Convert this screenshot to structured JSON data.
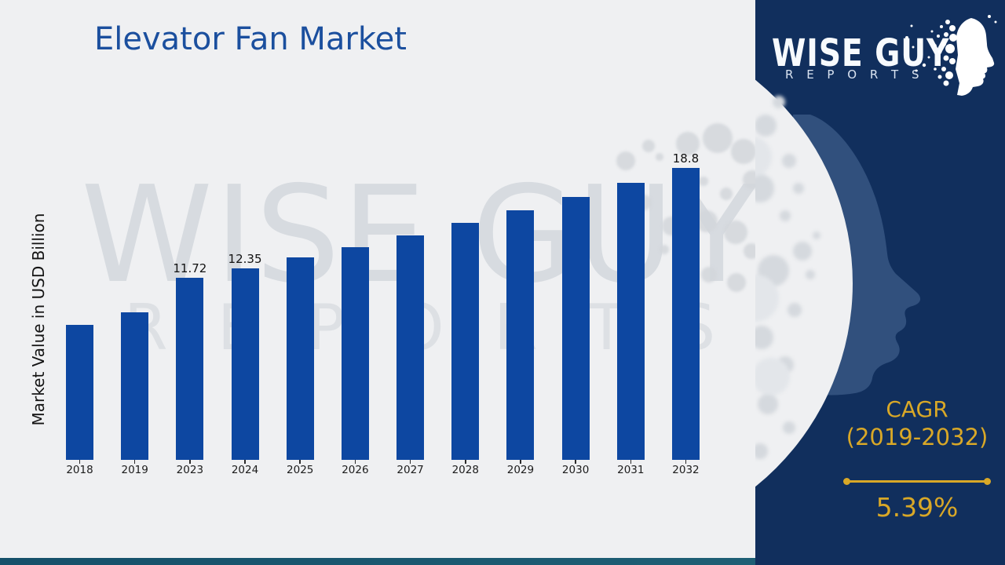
{
  "page": {
    "title": "Elevator Fan Market",
    "background": "#eff0f2",
    "navy": "#112f5d",
    "gold": "#d9a827",
    "teal_bar": "#1c5a6f"
  },
  "watermark": {
    "line1": "WISE GUY",
    "line2": "R E P O R T S"
  },
  "chart_data": {
    "type": "bar",
    "title": "Elevator Fan Market",
    "ylabel": "Market Value in USD Billion",
    "xlabel": "",
    "categories": [
      "2018",
      "2019",
      "2023",
      "2024",
      "2025",
      "2026",
      "2027",
      "2028",
      "2029",
      "2030",
      "2031",
      "2032"
    ],
    "values": [
      8.7,
      9.5,
      11.72,
      12.35,
      13.02,
      13.72,
      14.46,
      15.24,
      16.06,
      16.93,
      17.84,
      18.8
    ],
    "bar_labels": [
      "",
      "",
      "11.72",
      "12.35",
      "",
      "",
      "",
      "",
      "",
      "",
      "",
      "18.8"
    ],
    "bar_color": "#0d47a1",
    "ylim": [
      0,
      19.8
    ],
    "grid": false,
    "legend": null
  },
  "side_panel": {
    "logo": {
      "name_top": "WISE GUY",
      "name_bottom": "R E P O R T S"
    },
    "cagr_title": "CAGR",
    "cagr_period": "(2019-2032)",
    "cagr_value": "5.39%"
  }
}
